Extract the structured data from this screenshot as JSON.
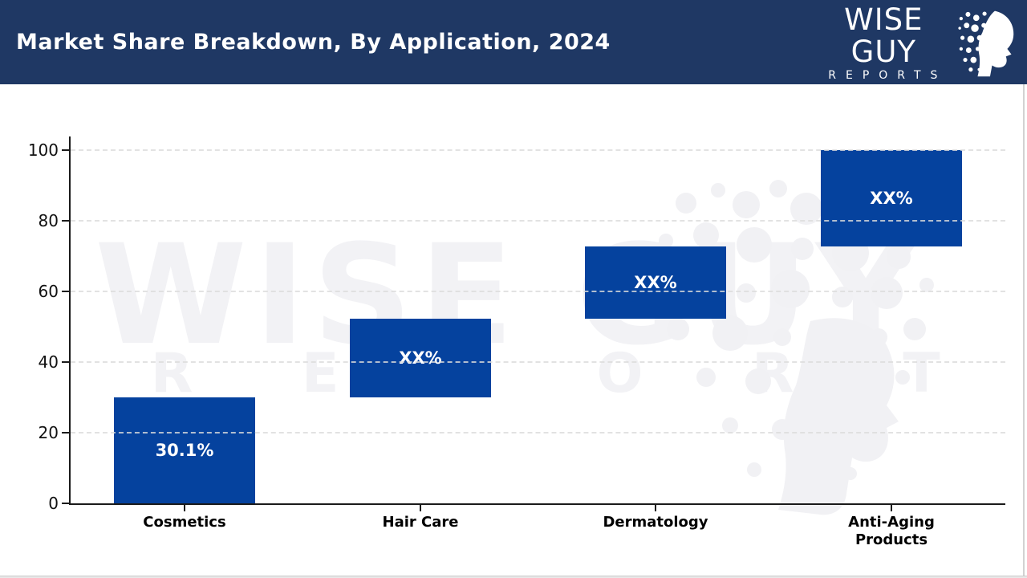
{
  "header": {
    "title": "Market Share Breakdown, By Application, 2024",
    "bg_color": "#1f3864",
    "logo": {
      "line1": "WISE GUY",
      "line2": "REPORTS"
    }
  },
  "watermark": {
    "line1": "WISE GUY",
    "line2": "R E P O R T S"
  },
  "chart_data": {
    "type": "bar",
    "subtype": "waterfall",
    "title": "Market Share Breakdown, By Application, 2024",
    "categories": [
      "Cosmetics",
      "Hair Care",
      "Dermatology",
      "Anti-Aging Products"
    ],
    "bars": [
      {
        "category": "Cosmetics",
        "start": 0,
        "end": 30.1,
        "label": "30.1%"
      },
      {
        "category": "Hair Care",
        "start": 30.1,
        "end": 52.3,
        "label": "XX%"
      },
      {
        "category": "Dermatology",
        "start": 52.3,
        "end": 72.7,
        "label": "XX%"
      },
      {
        "category": "Anti-Aging Products",
        "start": 72.7,
        "end": 100,
        "label": "XX%"
      }
    ],
    "xlabel": "",
    "ylabel": "",
    "ylim": [
      0,
      100
    ],
    "yticks": [
      0,
      20,
      40,
      60,
      80,
      100
    ],
    "grid": "horizontal-dashed",
    "legend": "none",
    "bar_color": "#05429e",
    "label_color": "#ffffff"
  }
}
